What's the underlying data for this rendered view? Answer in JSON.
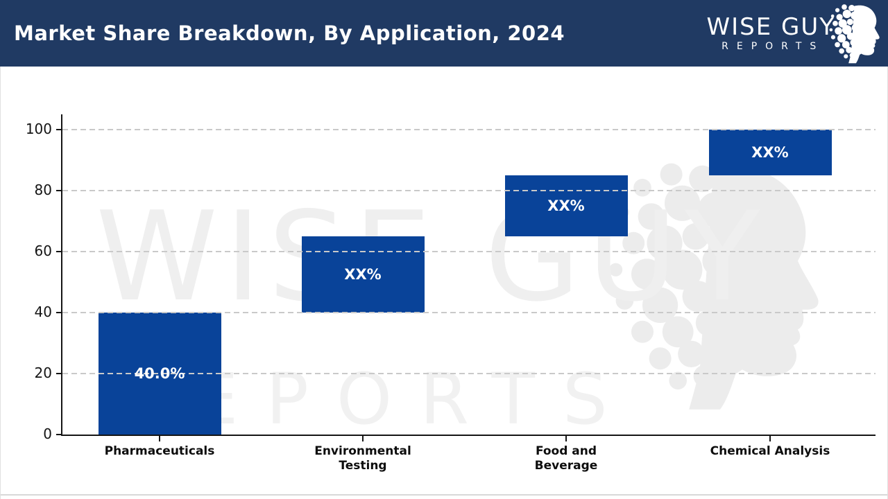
{
  "header": {
    "title": "Market Share Breakdown, By Application, 2024",
    "logo": {
      "line1": "WISE GUY",
      "line2": "REPORTS"
    }
  },
  "watermark": {
    "line1": "WISE GUY",
    "line2": "REPORTS"
  },
  "chart_data": {
    "type": "bar",
    "subtype": "floating-waterfall",
    "title": "Market Share Breakdown, By Application, 2024",
    "categories": [
      "Pharmaceuticals",
      "Environmental Testing",
      "Food and Beverage",
      "Chemical Analysis"
    ],
    "series": [
      {
        "name": "Market Share (%)",
        "segments": [
          {
            "category": "Pharmaceuticals",
            "start": 0,
            "end": 40,
            "label": "40.0%"
          },
          {
            "category": "Environmental Testing",
            "start": 40,
            "end": 65,
            "label": "XX%"
          },
          {
            "category": "Food and Beverage",
            "start": 65,
            "end": 85,
            "label": "XX%"
          },
          {
            "category": "Chemical Analysis",
            "start": 85,
            "end": 100,
            "label": "XX%"
          }
        ]
      }
    ],
    "xlabel": "",
    "ylabel": "",
    "ylim": [
      0,
      100
    ],
    "yticks": [
      0,
      20,
      40,
      60,
      80,
      100
    ],
    "grid": {
      "axis": "y",
      "style": "dashed",
      "on": true
    },
    "legend_position": "none"
  },
  "colors": {
    "header_bg": "#203a63",
    "bar": "#094399",
    "axis": "#141414",
    "grid": "#c9c9c9",
    "bar_label": "#ffffff",
    "watermark": "#efefef"
  }
}
